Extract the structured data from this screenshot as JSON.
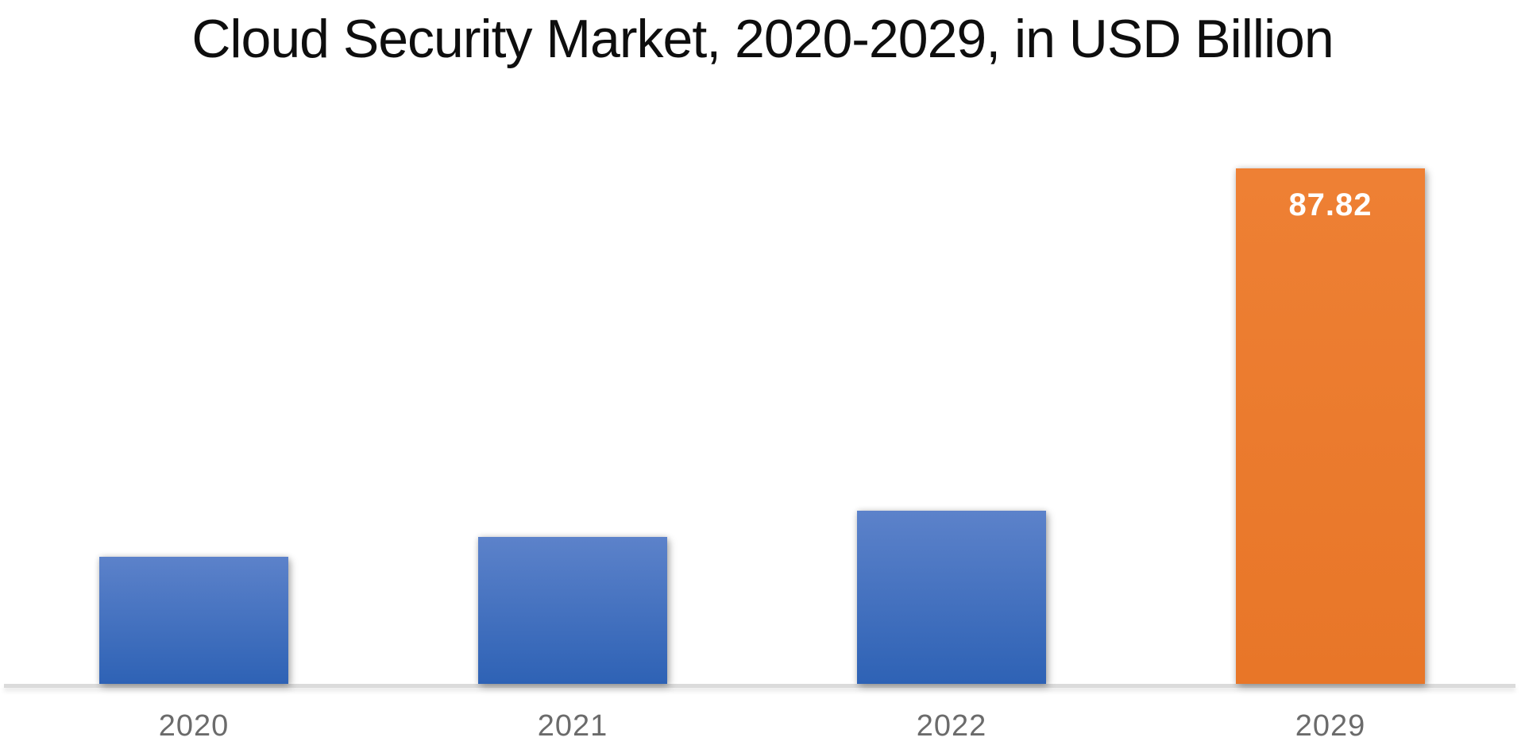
{
  "chart_data": {
    "type": "bar",
    "title": "Cloud Security Market, 2020-2029, in USD Billion",
    "categories": [
      "2020",
      "2021",
      "2022",
      "2029"
    ],
    "values": [
      21.7,
      25.0,
      29.5,
      87.82
    ],
    "value_labels": [
      "",
      "",
      "",
      "87.82"
    ],
    "xlabel": "",
    "ylabel": "",
    "ylim": [
      0,
      90
    ],
    "grid": false,
    "legend": false,
    "bar_colors": [
      {
        "top": "#5C82CA",
        "bottom": "#2E62B5"
      },
      {
        "top": "#5C82CA",
        "bottom": "#2E62B5"
      },
      {
        "top": "#5C82CA",
        "bottom": "#2E62B5"
      },
      {
        "top": "#EE8034",
        "bottom": "#E87628"
      }
    ],
    "colors": {
      "data_label": "#FFFFFF",
      "axis_line": "#DBDBDB",
      "tick_label": "#6B6B6B",
      "title": "#0E0E0E",
      "background": "#FFFFFF"
    }
  }
}
